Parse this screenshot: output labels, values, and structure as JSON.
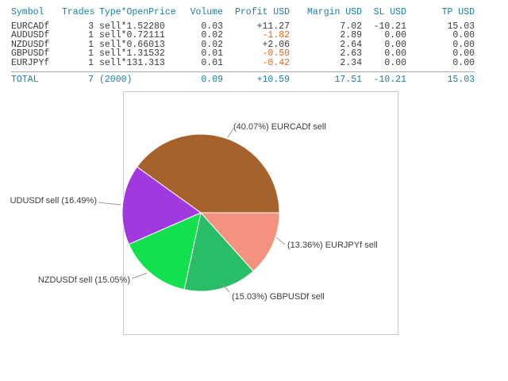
{
  "report_table": {
    "headers": {
      "symbol": "Symbol",
      "trades": "Trades",
      "type": "Type*OpenPrice",
      "volume": "Volume",
      "profit": "Profit USD",
      "margin": "Margin USD",
      "sl": "SL USD",
      "tp": "TP USD"
    },
    "rows": [
      {
        "symbol": "EURCADf",
        "trades": "3",
        "type": "sell*1.52280",
        "volume": "0.03",
        "profit": "+11.27",
        "margin": "7.02",
        "sl": "-10.21",
        "tp": "15.03"
      },
      {
        "symbol": "AUDUSDf",
        "trades": "1",
        "type": "sell*0.72111",
        "volume": "0.02",
        "profit": "-1.82",
        "margin": "2.89",
        "sl": "0.00",
        "tp": "0.00"
      },
      {
        "symbol": "NZDUSDf",
        "trades": "1",
        "type": "sell*0.66013",
        "volume": "0.02",
        "profit": "+2.06",
        "margin": "2.64",
        "sl": "0.00",
        "tp": "0.00"
      },
      {
        "symbol": "GBPUSDf",
        "trades": "1",
        "type": "sell*1.31532",
        "volume": "0.01",
        "profit": "-0.50",
        "margin": "2.63",
        "sl": "0.00",
        "tp": "0.00"
      },
      {
        "symbol": "EURJPYf",
        "trades": "1",
        "type": "sell*131.313",
        "volume": "0.01",
        "profit": "-0.42",
        "margin": "2.34",
        "sl": "0.00",
        "tp": "0.00"
      }
    ],
    "total": {
      "symbol": "TOTAL",
      "trades": "7",
      "type": "(2000)",
      "volume": "0.09",
      "profit": "+10.59",
      "margin": "17.51",
      "sl": "-10.21",
      "tp": "15.03"
    }
  },
  "chart_data": {
    "type": "pie",
    "title": "",
    "slices": [
      {
        "name": "EURCADf sell",
        "value_pct": 40.07,
        "color": "#a6622d"
      },
      {
        "name": "AUDUSDf sell",
        "value_pct": 16.49,
        "color": "#a238e0"
      },
      {
        "name": "NZDUSDf sell",
        "value_pct": 15.05,
        "color": "#12e14d"
      },
      {
        "name": "GBPUSDf sell",
        "value_pct": 15.03,
        "color": "#2abd68"
      },
      {
        "name": "EURJPYf sell",
        "value_pct": 13.36,
        "color": "#f4917f"
      }
    ],
    "start_angle_deg": 0,
    "direction": "counterclockwise",
    "legend_position": "callout-labels",
    "labels": {
      "eurcad": "(40.07%) EURCADf sell",
      "audusd": "UDUSDf sell (16.49%)",
      "nzdusd": "NZDUSDf sell (15.05%)",
      "gbpusd": "(15.03%) GBPUSDf sell",
      "eurjpy": "(13.36%) EURJPYf sell"
    }
  },
  "colors": {
    "header_text": "#1a7f9e",
    "total_text": "#1a7f9e",
    "negative_value": "#e2671b",
    "body_text": "#3b3b3b",
    "separator": "#a8a8a8",
    "chart_border": "#c9c9c9",
    "leader_line": "#999999"
  }
}
